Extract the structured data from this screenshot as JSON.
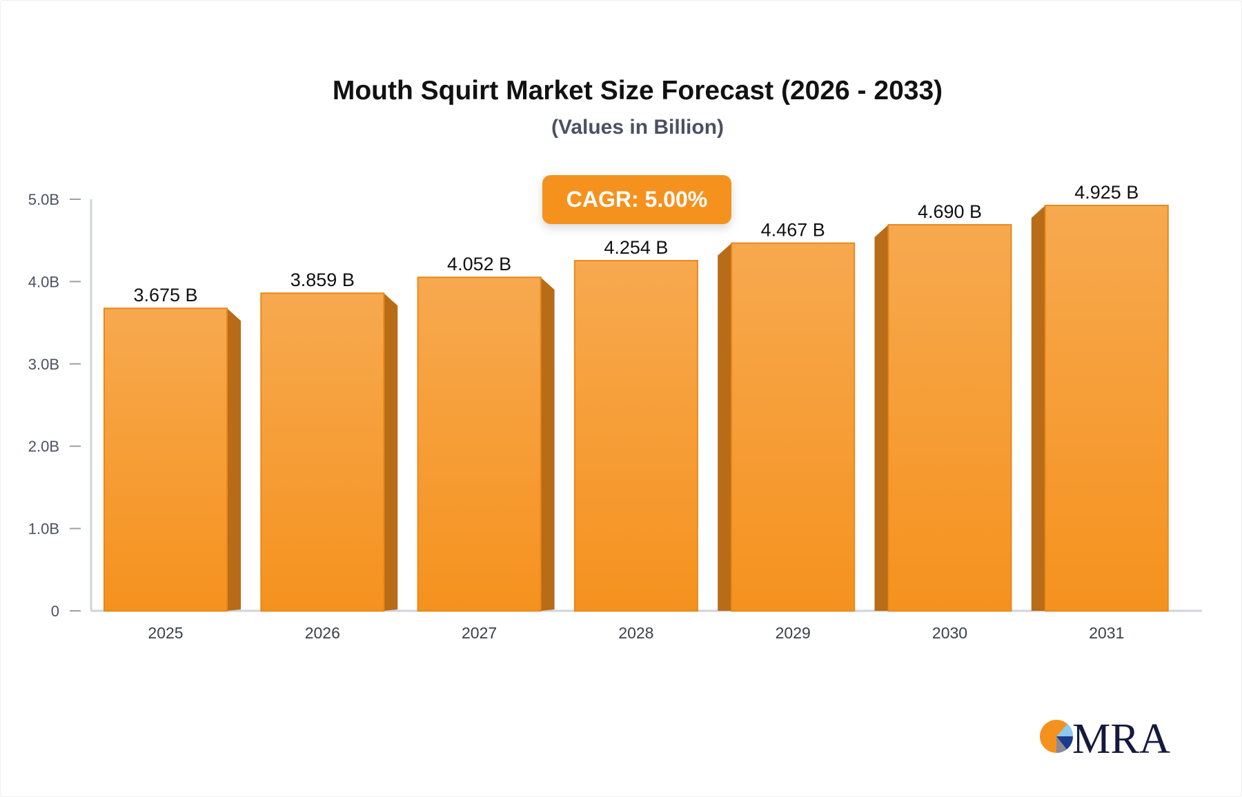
{
  "chart_data": {
    "type": "bar",
    "title": "Mouth Squirt Market Size Forecast (2026 - 2033)",
    "subtitle": "(Values in Billion)",
    "categories": [
      "2025",
      "2026",
      "2027",
      "2028",
      "2029",
      "2030",
      "2031"
    ],
    "values": [
      3.675,
      3.859,
      4.052,
      4.254,
      4.467,
      4.69,
      4.925
    ],
    "data_labels": [
      "3.675 B",
      "3.859 B",
      "4.052 B",
      "4.254 B",
      "4.467 B",
      "4.690 B",
      "4.925 B"
    ],
    "y_ticks": [
      0,
      1,
      2,
      3,
      4,
      5
    ],
    "y_tick_labels": [
      "0",
      "1.0B",
      "2.0B",
      "3.0B",
      "4.0B",
      "5.0B"
    ],
    "ylim": [
      0,
      5
    ],
    "xlabel": "",
    "ylabel": "",
    "grid": false,
    "annotation": "CAGR: 5.00%",
    "colors": {
      "bar": "#f5921e",
      "bar_top": "#f7a94f",
      "bar_side": "#b86c18",
      "axis": "#d0d3da"
    }
  },
  "logo": {
    "text": "MRA"
  }
}
